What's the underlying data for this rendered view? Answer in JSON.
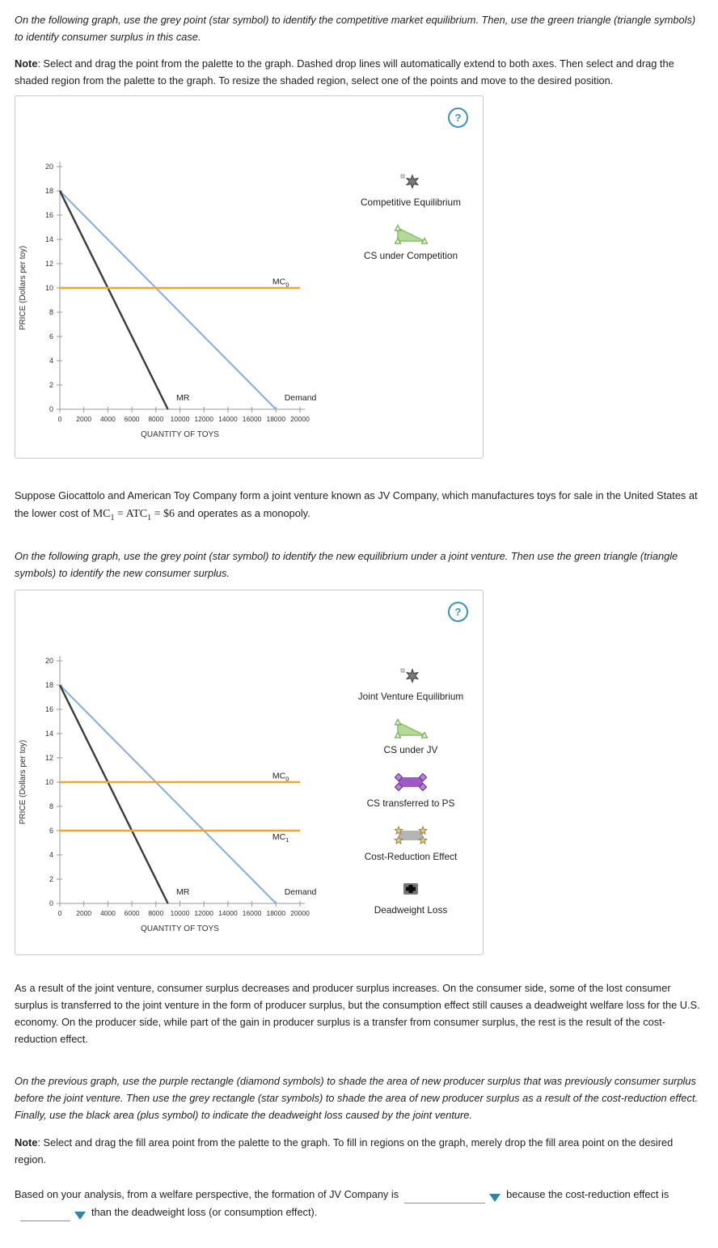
{
  "instructions": {
    "para1": "On the following graph, use the grey point (star symbol) to identify the competitive market equilibrium. Then, use the green triangle (triangle symbols) to identify consumer surplus in this case.",
    "para2": "On the following graph, use the grey point (star symbol) to identify the new equilibrium under a joint venture. Then use the green triangle (triangle symbols) to identify the new consumer surplus.",
    "para3": "On the previous graph, use the purple rectangle (diamond symbols) to shade the area of new producer surplus that was previously consumer surplus before the joint venture. Then use the grey rectangle (star symbols) to shade the area of new producer surplus as a result of the cost-reduction effect. Finally, use the black area (plus symbol) to indicate the deadweight loss caused by the joint venture."
  },
  "notes": {
    "label": "Note",
    "note1": ": Select and drag the point from the palette to the graph. Dashed drop lines will automatically extend to both axes. Then select and drag the shaded region from the palette to the graph. To resize the shaded region, select one of the points and move to the desired position.",
    "note2": ": Select and drag the fill area point from the palette to the graph. To fill in regions on the graph, merely drop the fill area point on the desired region."
  },
  "scenario": {
    "part1": "Suppose Giocattolo and American Toy Company form a joint venture known as JV Company, which manufactures toys for sale in the United States at the lower cost of ",
    "math_mc": "MC",
    "math_sub1": "1",
    "math_atc": " = ATC",
    "math_sub2": "1",
    "math_price": " = $6",
    "part2": " and operates as a monopoly."
  },
  "analysis": "As a result of the joint venture, consumer surplus decreases and producer surplus increases. On the consumer side, some of the lost consumer surplus is transferred to the joint venture in the form of producer surplus, but the consumption effect still causes a deadweight welfare loss for the U.S. economy. On the producer side, while part of the gain in producer surplus is a transfer from consumer surplus, the rest is the result of the cost-reduction effect.",
  "graphs": [
    {
      "help_label": "?",
      "palette": [
        {
          "id": "competitive-equilibrium",
          "icon": "star-point-icon",
          "label": "Competitive Equilibrium"
        },
        {
          "id": "cs-under-competition",
          "icon": "green-triangle-icon",
          "label": "CS under Competition"
        }
      ]
    },
    {
      "help_label": "?",
      "palette": [
        {
          "id": "joint-venture-equilibrium",
          "icon": "star-point-icon",
          "label": "Joint Venture Equilibrium"
        },
        {
          "id": "cs-under-jv",
          "icon": "green-triangle-icon",
          "label": "CS under JV"
        },
        {
          "id": "cs-transferred-to-ps",
          "icon": "purple-rectangle-diamond-icon",
          "label": "CS transferred to PS"
        },
        {
          "id": "cost-reduction-effect",
          "icon": "grey-rectangle-star-icon",
          "label": "Cost-Reduction Effect"
        },
        {
          "id": "deadweight-loss",
          "icon": "black-plus-icon",
          "label": "Deadweight Loss"
        }
      ]
    }
  ],
  "chart_data": [
    {
      "type": "line",
      "title": "",
      "xlabel": "QUANTITY OF TOYS",
      "ylabel": "PRICE (Dollars per toy)",
      "xlim": [
        0,
        20000
      ],
      "ylim": [
        0,
        20
      ],
      "x_ticks": [
        0,
        2000,
        4000,
        6000,
        8000,
        10000,
        12000,
        14000,
        16000,
        18000,
        20000
      ],
      "y_ticks": [
        0,
        2,
        4,
        6,
        8,
        10,
        12,
        14,
        16,
        18,
        20
      ],
      "grid": false,
      "series": [
        {
          "name": "Demand",
          "color": "#85aede",
          "width": 2,
          "points": [
            [
              0,
              18
            ],
            [
              18000,
              0
            ]
          ],
          "label": {
            "text": "Demand",
            "sub": "",
            "x": 18700,
            "y": 0.75
          }
        },
        {
          "name": "MR",
          "color": "#3a3a3a",
          "width": 2.4,
          "points": [
            [
              0,
              18
            ],
            [
              9000,
              0
            ]
          ],
          "label": {
            "text": "MR",
            "sub": "",
            "x": 9700,
            "y": 0.75
          }
        },
        {
          "name": "MC0",
          "color": "#f5a32e",
          "width": 2.6,
          "points": [
            [
              0,
              10
            ],
            [
              20000,
              10
            ]
          ],
          "label": {
            "text": "MC",
            "sub": "0",
            "x": 17700,
            "y": 10.3
          }
        }
      ]
    },
    {
      "type": "line",
      "title": "",
      "xlabel": "QUANTITY OF TOYS",
      "ylabel": "PRICE (Dollars per toy)",
      "xlim": [
        0,
        20000
      ],
      "ylim": [
        0,
        20
      ],
      "x_ticks": [
        0,
        2000,
        4000,
        6000,
        8000,
        10000,
        12000,
        14000,
        16000,
        18000,
        20000
      ],
      "y_ticks": [
        0,
        2,
        4,
        6,
        8,
        10,
        12,
        14,
        16,
        18,
        20
      ],
      "grid": false,
      "series": [
        {
          "name": "Demand",
          "color": "#85aede",
          "width": 2,
          "points": [
            [
              0,
              18
            ],
            [
              18000,
              0
            ]
          ],
          "label": {
            "text": "Demand",
            "sub": "",
            "x": 18700,
            "y": 0.75
          }
        },
        {
          "name": "MR",
          "color": "#3a3a3a",
          "width": 2.4,
          "points": [
            [
              0,
              18
            ],
            [
              9000,
              0
            ]
          ],
          "label": {
            "text": "MR",
            "sub": "",
            "x": 9700,
            "y": 0.75
          }
        },
        {
          "name": "MC0",
          "color": "#f5a32e",
          "width": 2.6,
          "points": [
            [
              0,
              10
            ],
            [
              20000,
              10
            ]
          ],
          "label": {
            "text": "MC",
            "sub": "0",
            "x": 17700,
            "y": 10.3
          }
        },
        {
          "name": "MC1",
          "color": "#f5a32e",
          "width": 2.6,
          "points": [
            [
              0,
              6
            ],
            [
              20000,
              6
            ]
          ],
          "label": {
            "text": "MC",
            "sub": "1",
            "x": 17700,
            "y": 5.27
          }
        }
      ]
    }
  ],
  "question": {
    "part1": "Based on your analysis, from a welfare perspective, the formation of JV Company is",
    "part2": "because the cost-reduction effect is",
    "part3": "than the deadweight loss (or consumption effect).",
    "dropdown1_value": "",
    "dropdown2_value": ""
  },
  "colors": {
    "demand_line": "#85aede",
    "mr_line": "#3a3a3a",
    "mc_line": "#f5a32e",
    "cs_triangle_green": "#b5d89b",
    "ps_rect_purple": "#9e59c4",
    "cost_reduction_grey": "#b5b5b5",
    "deadweight_dark": "#0a0a0a",
    "help_icon": "#3f93b5",
    "dropdown_arrow": "#2f84a8"
  }
}
